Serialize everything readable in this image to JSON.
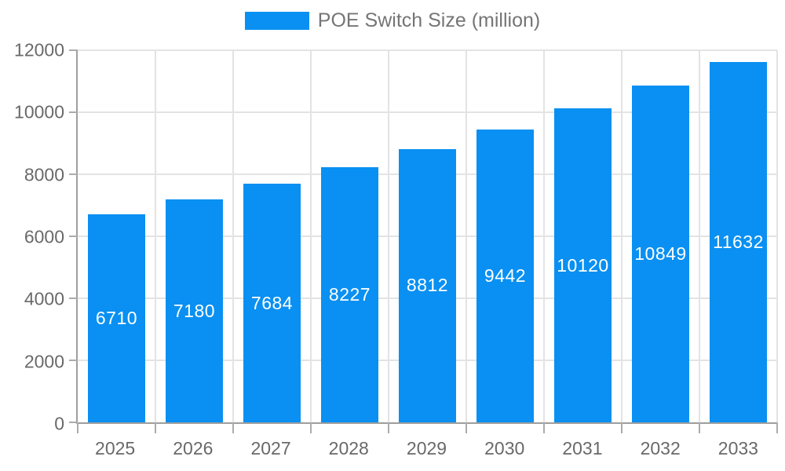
{
  "chart_data": {
    "type": "bar",
    "title": "POE Switch Size (million)",
    "categories": [
      "2025",
      "2026",
      "2027",
      "2028",
      "2029",
      "2030",
      "2031",
      "2032",
      "2033"
    ],
    "values": [
      6710,
      7180,
      7684,
      8227,
      8812,
      9442,
      10120,
      10849,
      11632
    ],
    "xlabel": "",
    "ylabel": "",
    "ylim": [
      0,
      12000
    ],
    "yticks": [
      0,
      2000,
      4000,
      6000,
      8000,
      10000,
      12000
    ],
    "grid": true,
    "legend_position": "top",
    "value_labels": "inside-center"
  },
  "legend": {
    "label": "POE Switch Size (million)"
  },
  "colors": {
    "bar": "#0990f2",
    "value_label": "#ffffff",
    "axis_line": "#9e9e9e",
    "gridline": "#e3e3e3",
    "tick": "#ababab",
    "axis_text": "#696969",
    "legend_text": "#757575",
    "background": "#ffffff"
  }
}
